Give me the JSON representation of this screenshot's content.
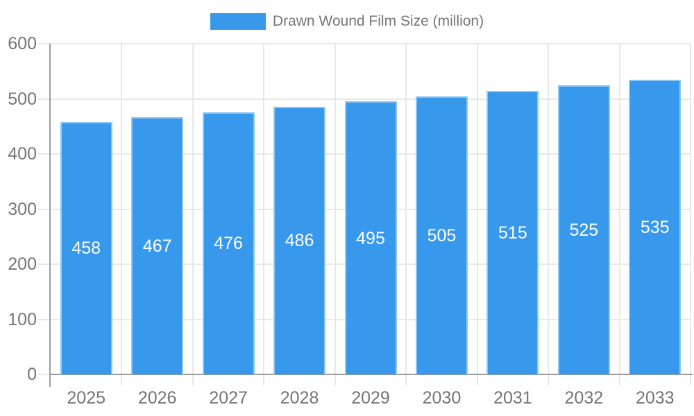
{
  "chart_data": {
    "type": "bar",
    "title": "",
    "categories": [
      "2025",
      "2026",
      "2027",
      "2028",
      "2029",
      "2030",
      "2031",
      "2032",
      "2033"
    ],
    "series": [
      {
        "name": "Drawn Wound Film Size (million)",
        "color": "#3899EC",
        "values": [
          458,
          467,
          476,
          486,
          495,
          505,
          515,
          525,
          535
        ]
      }
    ],
    "ylim": [
      0,
      600
    ],
    "ytick_step": 100,
    "grid": true,
    "legend_position": "top",
    "value_label_position": "inside-center",
    "colors": {
      "bar": "#3899EC",
      "bar_stroke": "rgba(255,255,255,0.45)",
      "grid": "#E8E8E8",
      "axis": "#9C9C9C",
      "tick_text": "#757575",
      "value_text": "#FFFFFF"
    }
  }
}
